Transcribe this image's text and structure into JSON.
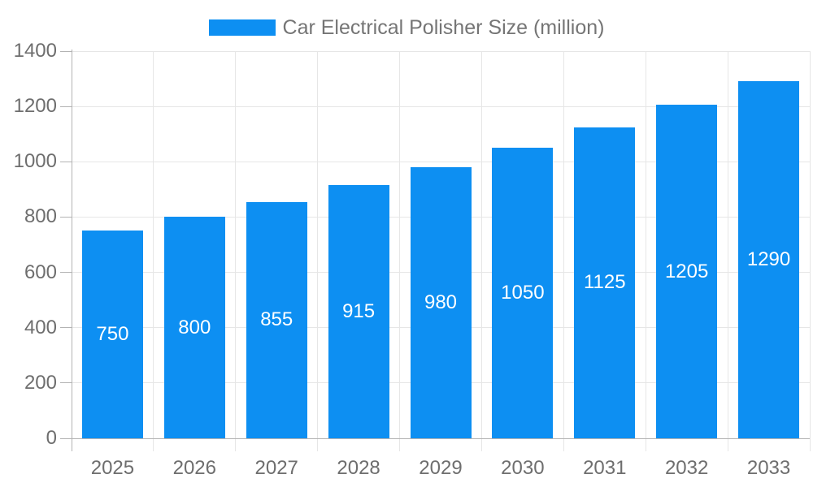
{
  "chart_data": {
    "type": "bar",
    "title": "Car Electrical Polisher Size (million)",
    "categories": [
      "2025",
      "2026",
      "2027",
      "2028",
      "2029",
      "2030",
      "2031",
      "2032",
      "2033"
    ],
    "values": [
      750,
      800,
      855,
      915,
      980,
      1050,
      1125,
      1205,
      1290
    ],
    "yticks": [
      0,
      200,
      400,
      600,
      800,
      1000,
      1200,
      1400
    ],
    "ylim": [
      0,
      1400
    ],
    "xlabel": "",
    "ylabel": "",
    "grid": true,
    "legend_position": "top",
    "value_label_position": "inside-center",
    "colors": {
      "bar": "#0d8ff2",
      "value_label": "#ffffff",
      "axis_text": "#6e6e6e",
      "title_text": "#757575",
      "gridline": "#e6e6e6",
      "axis_line": "#b3b3b3",
      "background": "#ffffff"
    }
  }
}
